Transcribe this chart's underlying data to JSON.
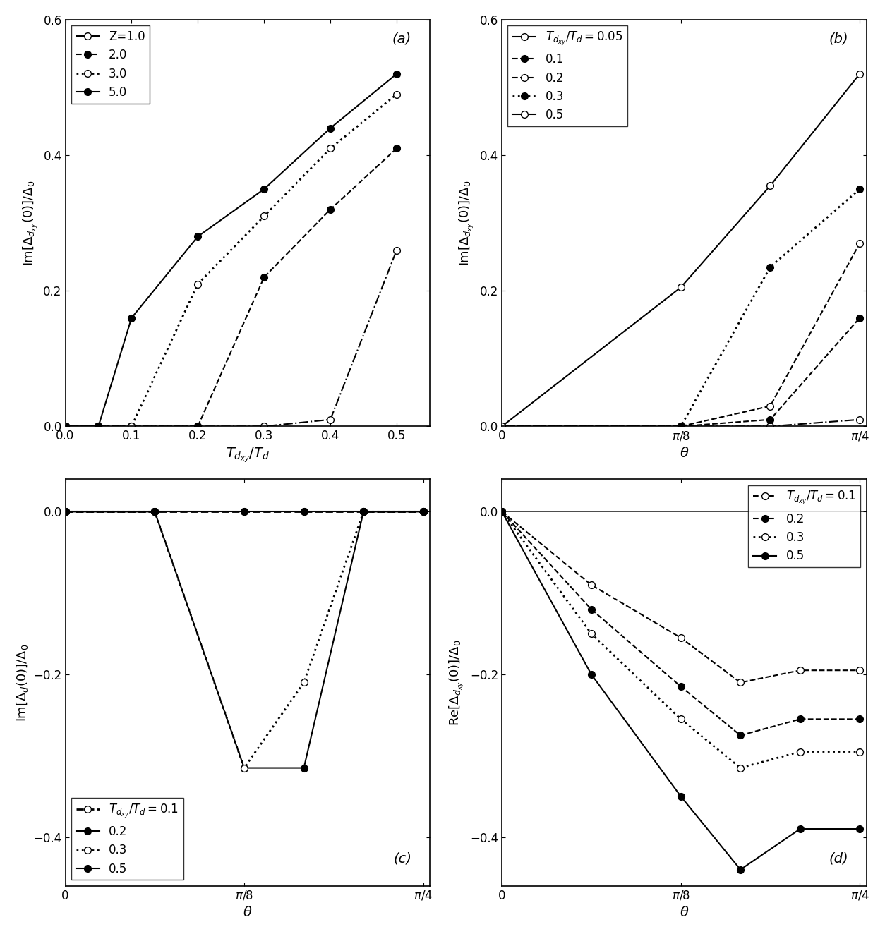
{
  "panel_a": {
    "title": "(a)",
    "xlabel": "$T_{d_{xy}}/T_d$",
    "ylabel": "Im[$\\Delta_{d_{xy}}(0)$]/$\\Delta_0$",
    "xlim": [
      0,
      0.55
    ],
    "ylim": [
      0,
      0.6
    ],
    "xticks": [
      0,
      0.1,
      0.2,
      0.3,
      0.4,
      0.5
    ],
    "yticks": [
      0,
      0.2,
      0.4,
      0.6
    ],
    "series": [
      {
        "label": "Z=1.0",
        "x": [
          0,
          0.05,
          0.1,
          0.2,
          0.3,
          0.4,
          0.5
        ],
        "y": [
          0,
          0.0,
          0.0,
          0.0,
          0.0,
          0.01,
          0.26
        ],
        "linestyle": "-.",
        "marker": "o",
        "filled": false,
        "linewidth": 1.5,
        "markersize": 7
      },
      {
        "label": "2.0",
        "x": [
          0,
          0.05,
          0.1,
          0.2,
          0.3,
          0.4,
          0.5
        ],
        "y": [
          0,
          0.0,
          0.0,
          0.0,
          0.22,
          0.32,
          0.41
        ],
        "linestyle": "--",
        "marker": "o",
        "filled": true,
        "linewidth": 1.5,
        "markersize": 7
      },
      {
        "label": "3.0",
        "x": [
          0,
          0.05,
          0.1,
          0.2,
          0.3,
          0.4,
          0.5
        ],
        "y": [
          0,
          0.0,
          0.0,
          0.21,
          0.31,
          0.41,
          0.49
        ],
        "linestyle": ":",
        "marker": "o",
        "filled": false,
        "linewidth": 2.0,
        "markersize": 7
      },
      {
        "label": "5.0",
        "x": [
          0,
          0.05,
          0.1,
          0.2,
          0.3,
          0.4,
          0.5
        ],
        "y": [
          0,
          0.0,
          0.16,
          0.28,
          0.35,
          0.44,
          0.52
        ],
        "linestyle": "-",
        "marker": "o",
        "filled": true,
        "linewidth": 1.5,
        "markersize": 7
      }
    ]
  },
  "panel_b": {
    "title": "(b)",
    "xlabel": "$\\theta$",
    "ylabel": "Im[$\\Delta_{d_{xy}}(0)$]/$\\Delta_0$",
    "xlim": [
      0,
      0.8
    ],
    "ylim": [
      0,
      0.6
    ],
    "xtick_vals": [
      0,
      0.3927,
      0.7854
    ],
    "xtick_labels": [
      "0",
      "$\\pi/8$",
      "$\\pi/4$"
    ],
    "yticks": [
      0,
      0.2,
      0.4,
      0.6
    ],
    "series": [
      {
        "label": "$T_{d_{xy}}/T_d=0.05$",
        "x": [
          0,
          0.3927,
          0.589,
          0.7854
        ],
        "y": [
          0.0,
          0.0,
          0.0,
          0.01
        ],
        "linestyle": "-.",
        "marker": "o",
        "filled": false,
        "linewidth": 1.5,
        "markersize": 7
      },
      {
        "label": "0.1",
        "x": [
          0,
          0.3927,
          0.589,
          0.7854
        ],
        "y": [
          0.0,
          0.0,
          0.01,
          0.16
        ],
        "linestyle": "--",
        "marker": "o",
        "filled": true,
        "linewidth": 1.5,
        "markersize": 7
      },
      {
        "label": "0.2",
        "x": [
          0,
          0.3927,
          0.589,
          0.7854
        ],
        "y": [
          0.0,
          0.0,
          0.03,
          0.27
        ],
        "linestyle": "--",
        "marker": "o",
        "filled": false,
        "linewidth": 1.5,
        "markersize": 7
      },
      {
        "label": "0.3",
        "x": [
          0,
          0.3927,
          0.589,
          0.7854
        ],
        "y": [
          0.0,
          0.0,
          0.235,
          0.35
        ],
        "linestyle": ":",
        "marker": "o",
        "filled": true,
        "linewidth": 2.0,
        "markersize": 7
      },
      {
        "label": "0.5",
        "x": [
          0,
          0.3927,
          0.589,
          0.7854
        ],
        "y": [
          0.0,
          0.205,
          0.355,
          0.52
        ],
        "linestyle": "-",
        "marker": "o",
        "filled": false,
        "linewidth": 1.5,
        "markersize": 7
      }
    ]
  },
  "panel_c": {
    "title": "(c)",
    "xlabel": "$\\theta$",
    "ylabel": "Im[$\\Delta_d(0)$]/$\\Delta_0$",
    "xlim": [
      0,
      0.8
    ],
    "ylim": [
      -0.46,
      0.04
    ],
    "xtick_vals": [
      0,
      0.3927,
      0.7854
    ],
    "xtick_labels": [
      "0",
      "$\\pi/8$",
      "$\\pi/4$"
    ],
    "yticks": [
      0,
      -0.2,
      -0.4
    ],
    "series": [
      {
        "label": "$T_{d_{xy}}/T_d=0.1$",
        "x": [
          0,
          0.1963,
          0.3927,
          0.5236,
          0.6545,
          0.7854
        ],
        "y": [
          0,
          0.0,
          0.0,
          0.0,
          0.0,
          0.0
        ],
        "linestyle": "--",
        "marker": "o",
        "filled": false,
        "linewidth": 2.0,
        "markersize": 7
      },
      {
        "label": "0.2",
        "x": [
          0,
          0.1963,
          0.3927,
          0.5236,
          0.6545,
          0.7854
        ],
        "y": [
          0,
          0.0,
          -0.315,
          -0.315,
          0.0,
          0.0
        ],
        "linestyle": "-",
        "marker": "o",
        "filled": true,
        "linewidth": 1.5,
        "markersize": 7
      },
      {
        "label": "0.3",
        "x": [
          0,
          0.1963,
          0.3927,
          0.5236,
          0.6545,
          0.7854
        ],
        "y": [
          0,
          0.0,
          -0.315,
          -0.21,
          0.0,
          0.0
        ],
        "linestyle": ":",
        "marker": "o",
        "filled": false,
        "linewidth": 2.0,
        "markersize": 7
      },
      {
        "label": "0.5",
        "x": [
          0,
          0.1963,
          0.3927,
          0.5236,
          0.6545,
          0.7854
        ],
        "y": [
          0,
          0.0,
          0.0,
          0.0,
          0.0,
          0.0
        ],
        "linestyle": "-",
        "marker": "o",
        "filled": true,
        "linewidth": 1.5,
        "markersize": 7
      }
    ]
  },
  "panel_d": {
    "title": "(d)",
    "xlabel": "$\\theta$",
    "ylabel": "Re[$\\Delta_{d_{xy}}(0)$]/$\\Delta_0$",
    "xlim": [
      0,
      0.8
    ],
    "ylim": [
      -0.46,
      0.04
    ],
    "xtick_vals": [
      0,
      0.3927,
      0.7854
    ],
    "xtick_labels": [
      "0",
      "$\\pi/8$",
      "$\\pi/4$"
    ],
    "yticks": [
      0,
      -0.2,
      -0.4
    ],
    "series": [
      {
        "label": "$T_{d_{xy}}/T_d=0.1$",
        "x": [
          0,
          0.1963,
          0.3927,
          0.5236,
          0.6545,
          0.7854
        ],
        "y": [
          0.0,
          -0.09,
          -0.155,
          -0.21,
          -0.195,
          -0.195
        ],
        "linestyle": "--",
        "marker": "o",
        "filled": false,
        "linewidth": 1.5,
        "markersize": 7
      },
      {
        "label": "0.2",
        "x": [
          0,
          0.1963,
          0.3927,
          0.5236,
          0.6545,
          0.7854
        ],
        "y": [
          0.0,
          -0.12,
          -0.215,
          -0.275,
          -0.255,
          -0.255
        ],
        "linestyle": "--",
        "marker": "o",
        "filled": true,
        "linewidth": 1.5,
        "markersize": 7
      },
      {
        "label": "0.3",
        "x": [
          0,
          0.1963,
          0.3927,
          0.5236,
          0.6545,
          0.7854
        ],
        "y": [
          0.0,
          -0.15,
          -0.255,
          -0.315,
          -0.295,
          -0.295
        ],
        "linestyle": ":",
        "marker": "o",
        "filled": false,
        "linewidth": 2.0,
        "markersize": 7
      },
      {
        "label": "0.5",
        "x": [
          0,
          0.1963,
          0.3927,
          0.5236,
          0.6545,
          0.7854
        ],
        "y": [
          0.0,
          -0.2,
          -0.35,
          -0.44,
          -0.39,
          -0.39
        ],
        "linestyle": "-",
        "marker": "o",
        "filled": true,
        "linewidth": 1.5,
        "markersize": 7
      }
    ]
  }
}
